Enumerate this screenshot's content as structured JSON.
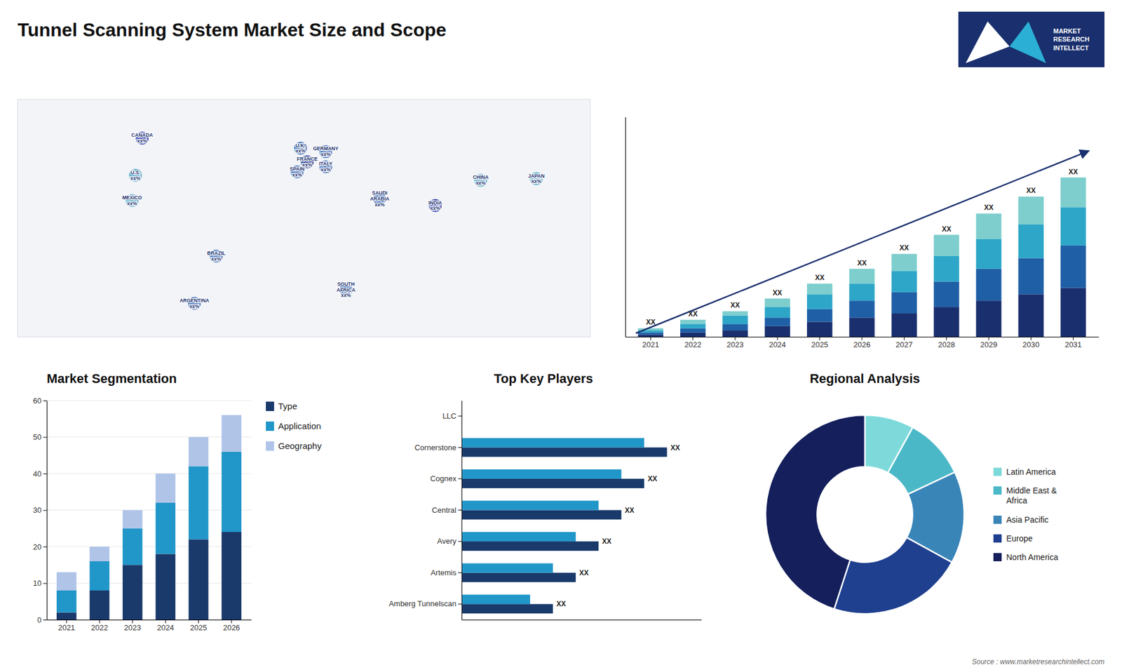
{
  "title": "Tunnel Scanning System Market Size and Scope",
  "annotations": [
    "MARKET\nRESEARCH\nINTELLECT",
    "Source : www.marketresearchintellect.com"
  ],
  "chart_data": [
    {
      "type": "map",
      "labels": [
        "CANADA\nxx%",
        "U.S.\nxx%",
        "MEXICO\nxx%",
        "BRAZIL\nxx%",
        "ARGENTINA\nxx%",
        "U.K.\nxx%",
        "FRANCE\nxx%",
        "GERMANY\nxx%",
        "SPAIN\nxx%",
        "ITALY\nxx%",
        "SAUDI\nARABIA\nxx%",
        "SOUTH\nAFRICA\nxx%",
        "CHINA\nxx%",
        "INDIA\nxx%",
        "JAPAN\nxx%"
      ],
      "x": [
        -96,
        -100,
        -102,
        -52,
        -65,
        -2,
        2,
        13,
        -4,
        13,
        45,
        25,
        105,
        78,
        138
      ],
      "y": [
        60,
        38,
        23,
        -10,
        -38,
        54,
        46,
        52,
        40,
        43,
        24,
        -30,
        35,
        20,
        36
      ],
      "colors": [
        "#2233aa",
        "#5aadcc",
        "#5aadcc",
        "#3a6fbb",
        "#3a6fbb",
        "#3a6fbb",
        "#1a2f8e",
        "#3a6fbb",
        "#3a6fbb",
        "#3a6fbb",
        "#3a6fbb",
        "#3a6fbb",
        "#5aadcc",
        "#2233aa",
        "#5aadcc"
      ],
      "color": "#1a2f6e",
      "xlim": [
        -170,
        170
      ],
      "ylim": [
        -58,
        83
      ],
      "tick_labels": false,
      "grid": false
    },
    {
      "type": "bar",
      "stacked": true,
      "categories": [
        "2021",
        "2022",
        "2023",
        "2024",
        "2025",
        "2026",
        "2027",
        "2028",
        "2029",
        "2030",
        "2031"
      ],
      "series": [
        {
          "color": "#1a2f6e",
          "values": [
            1,
            2,
            3,
            5,
            7,
            9,
            11,
            14,
            17,
            20,
            23
          ]
        },
        {
          "color": "#1f5fa6",
          "values": [
            1,
            2,
            3,
            4,
            6,
            8,
            10,
            12,
            15,
            17,
            20
          ]
        },
        {
          "color": "#2da6c8",
          "values": [
            1,
            2,
            4,
            5,
            7,
            8,
            10,
            12,
            14,
            16,
            18
          ]
        },
        {
          "color": "#7ecece",
          "values": [
            1,
            2,
            2,
            4,
            5,
            7,
            8,
            10,
            12,
            13,
            14
          ]
        }
      ],
      "annotations": [
        "XX",
        "XX",
        "XX",
        "XX",
        "XX",
        "XX",
        "XX",
        "XX",
        "XX",
        "XX",
        "XX"
      ],
      "ylim": [
        0,
        103.5
      ],
      "tick_labels": "x",
      "grid": false
    },
    {
      "type": "bar",
      "title": "Market Segmentation",
      "stacked": true,
      "categories": [
        "2021",
        "2022",
        "2023",
        "2024",
        "2025",
        "2026"
      ],
      "series": [
        {
          "name": "Type",
          "color": "#1a3a6b",
          "values": [
            2,
            8,
            15,
            18,
            22,
            24
          ]
        },
        {
          "name": "Application",
          "color": "#2196c8",
          "values": [
            6,
            8,
            10,
            14,
            20,
            22
          ]
        },
        {
          "name": "Geography",
          "color": "#b0c4e8",
          "values": [
            5,
            4,
            5,
            8,
            8,
            10
          ]
        }
      ],
      "ylim": [
        0,
        60
      ],
      "yticks": [
        0,
        10,
        20,
        30,
        40,
        50,
        60
      ],
      "grid": true,
      "legend": "right"
    },
    {
      "type": "bar",
      "title": "Top Key Players",
      "orientation": "horizontal",
      "categories": [
        "Amberg Tunnelscan",
        "Artemis",
        "Avery",
        "Central",
        "Cognex",
        "Cornerstone",
        "LLC"
      ],
      "series": [
        {
          "color": "#1a3a6b",
          "values": [
            4,
            5,
            6,
            7,
            8,
            9,
            0
          ]
        },
        {
          "color": "#2196c8",
          "values": [
            3,
            4,
            5,
            6,
            7,
            8,
            0
          ]
        }
      ],
      "annotations": [
        "XX",
        "XX",
        "XX",
        "XX",
        "XX",
        "XX",
        null
      ],
      "xlim": [
        0,
        10.5
      ],
      "tick_labels": "y",
      "grid": false
    },
    {
      "type": "donut",
      "title": "Regional Analysis",
      "categories": [
        "Latin America",
        "Middle East &\nAfrica",
        "Asia Pacific",
        "Europe",
        "North America"
      ],
      "values": [
        8,
        10,
        15,
        22,
        45
      ],
      "colors": [
        "#7EDADA",
        "#4BB8C8",
        "#3a85b8",
        "#1f3f8f",
        "#141f5c"
      ],
      "legend": "right"
    }
  ]
}
